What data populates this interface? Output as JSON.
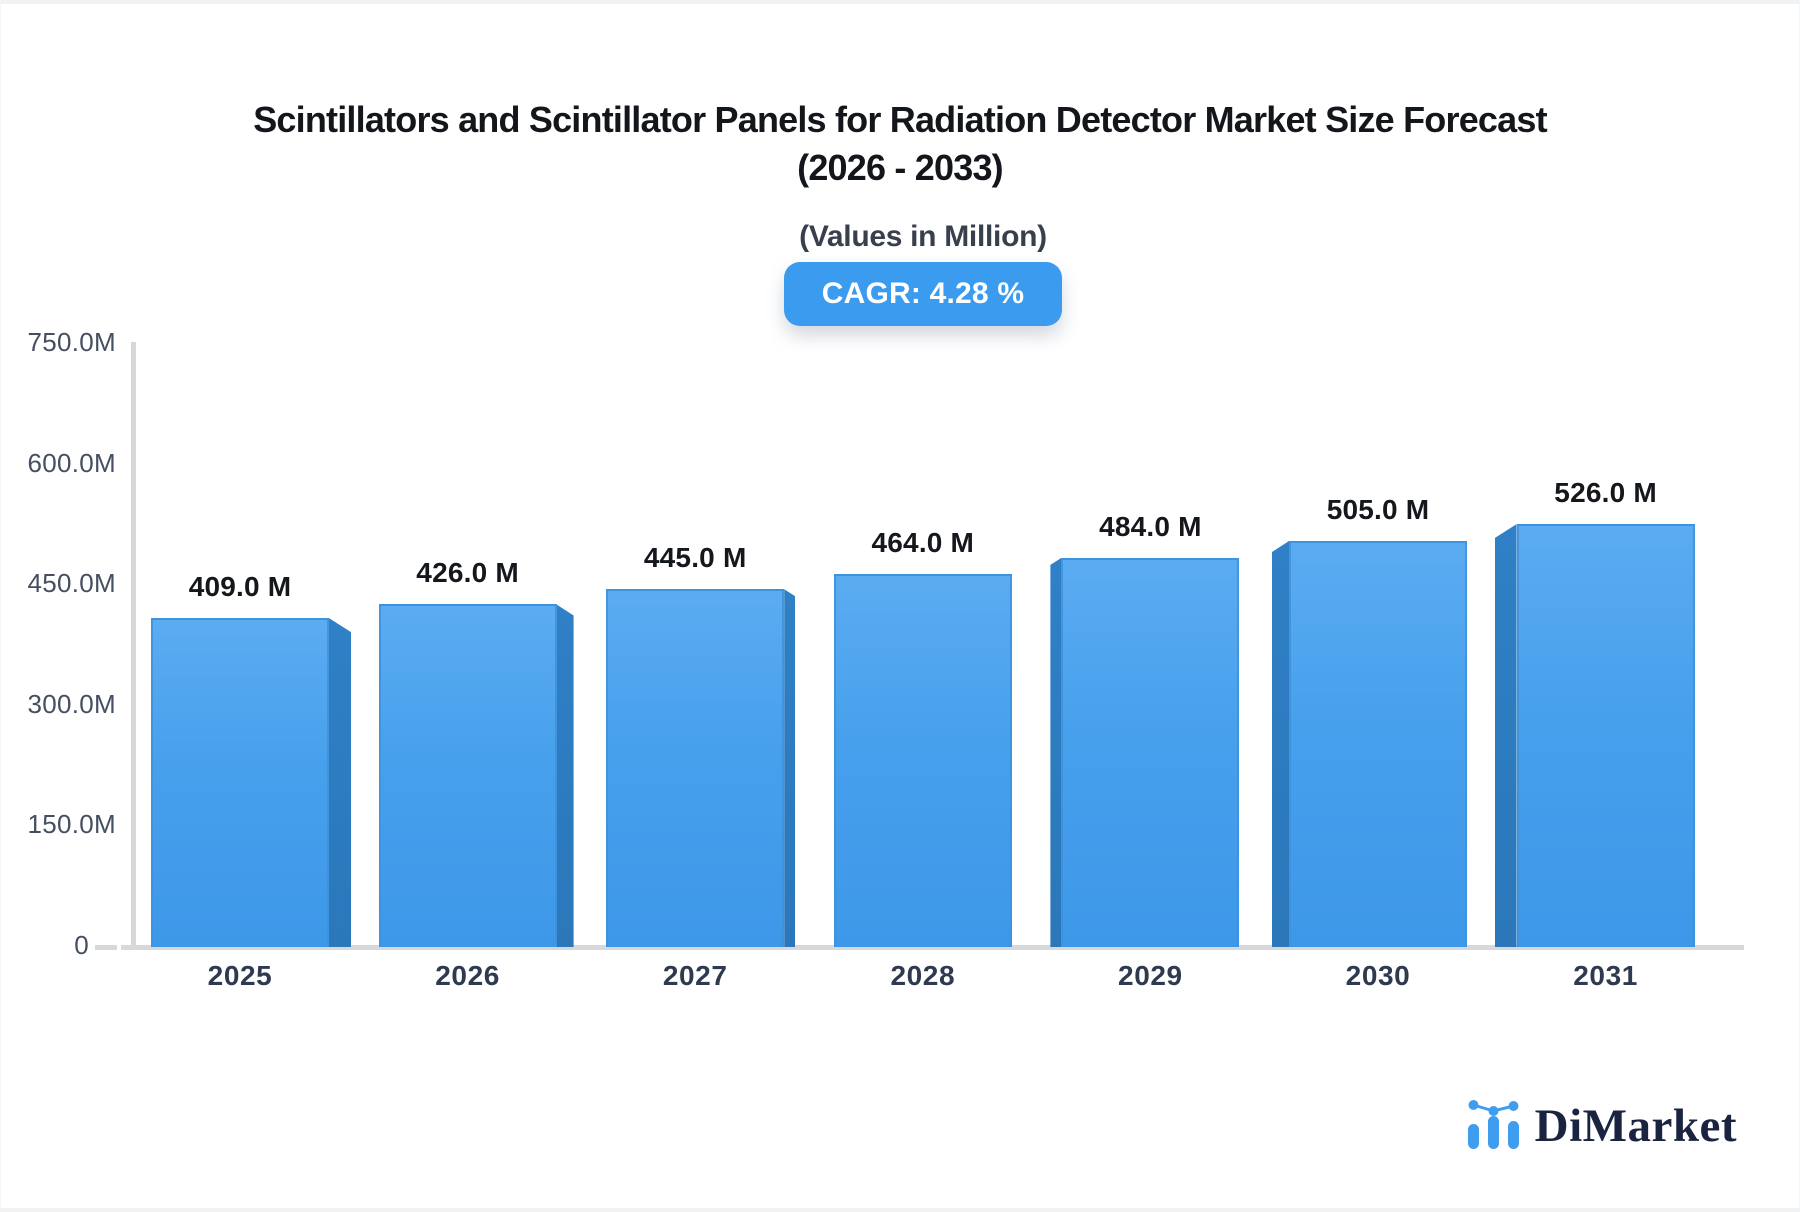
{
  "header": {
    "title_line1": "Scintillators and Scintillator Panels for Radiation Detector Market Size Forecast",
    "title_line2": "(2026 - 2033)",
    "subtitle": "(Values in Million)",
    "cagr_label": "CAGR: 4.28 %"
  },
  "chart_data": {
    "type": "bar",
    "title": "Scintillators and Scintillator Panels for Radiation Detector Market Size Forecast (2026 - 2033)",
    "subtitle": "(Values in Million)",
    "cagr_percent": 4.28,
    "categories": [
      "2025",
      "2026",
      "2027",
      "2028",
      "2029",
      "2030",
      "2031"
    ],
    "values": [
      409,
      426,
      445,
      464,
      484,
      505,
      526
    ],
    "value_labels": [
      "409.0 M",
      "426.0 M",
      "445.0 M",
      "464.0 M",
      "484.0 M",
      "505.0 M",
      "526.0 M"
    ],
    "unit": "Million",
    "ylim": [
      0,
      750
    ],
    "ytick_step": 150,
    "yticks": [
      {
        "label": "750.0M",
        "value": 750
      },
      {
        "label": "600.0M",
        "value": 600
      },
      {
        "label": "450.0M",
        "value": 450
      },
      {
        "label": "300.0M",
        "value": 300
      },
      {
        "label": "150.0M",
        "value": 150
      },
      {
        "label": "0",
        "value": 0
      }
    ],
    "grid": "off",
    "legend": "none",
    "bar_style": "3d-perspective"
  },
  "brand": {
    "name": "DiMarket",
    "icon": "bar-chart-logo-icon"
  },
  "colors": {
    "accent": "#3b9bee",
    "bar_face_top": "#5bacf1",
    "bar_face_bottom": "#3e98e9",
    "bar_side": "#2e7dc2",
    "axis": "#d6d8dc",
    "title_text": "#13161b",
    "subtitle_text": "#383f4d",
    "tick_text": "#454f61",
    "category_text": "#2f3950",
    "logo_text": "#1a2441"
  }
}
